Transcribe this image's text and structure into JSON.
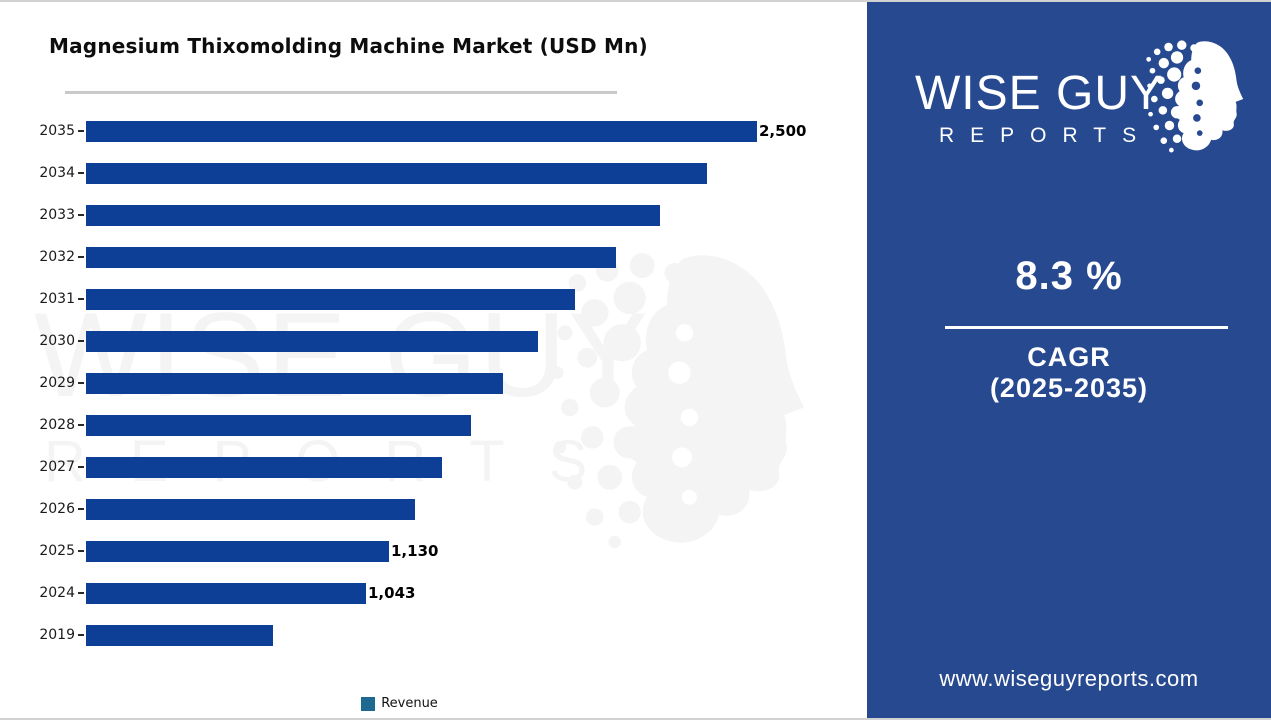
{
  "chart_data": {
    "type": "bar",
    "orientation": "horizontal",
    "title": "Magnesium Thixomolding Machine Market (USD Mn)",
    "categories": [
      "2035",
      "2034",
      "2033",
      "2032",
      "2031",
      "2030",
      "2029",
      "2028",
      "2027",
      "2026",
      "2025",
      "2024",
      "2019"
    ],
    "values": [
      2500,
      2315,
      2138,
      1974,
      1823,
      1683,
      1554,
      1435,
      1325,
      1224,
      1130,
      1043,
      695
    ],
    "bar_labels": [
      "2,500",
      "",
      "",
      "",
      "",
      "",
      "",
      "",
      "",
      "",
      "1,130",
      "1,043",
      ""
    ],
    "xlim": [
      0,
      2500
    ],
    "grid": false,
    "bar_color": "#0d3f96",
    "legend": {
      "label": "Revenue",
      "color": "#1d6a8e",
      "position": "bottom-center"
    }
  },
  "sidebar": {
    "background": "#274990",
    "logo": {
      "line1": "WISE GUY",
      "line2": "REPORTS"
    },
    "cagr": {
      "value": "8.3 %",
      "line1": "CAGR",
      "line2": "(2025-2035)"
    },
    "website": "www.wiseguyreports.com"
  },
  "watermark": {
    "line1": "WISE GUY",
    "line2": "REPORTS"
  }
}
